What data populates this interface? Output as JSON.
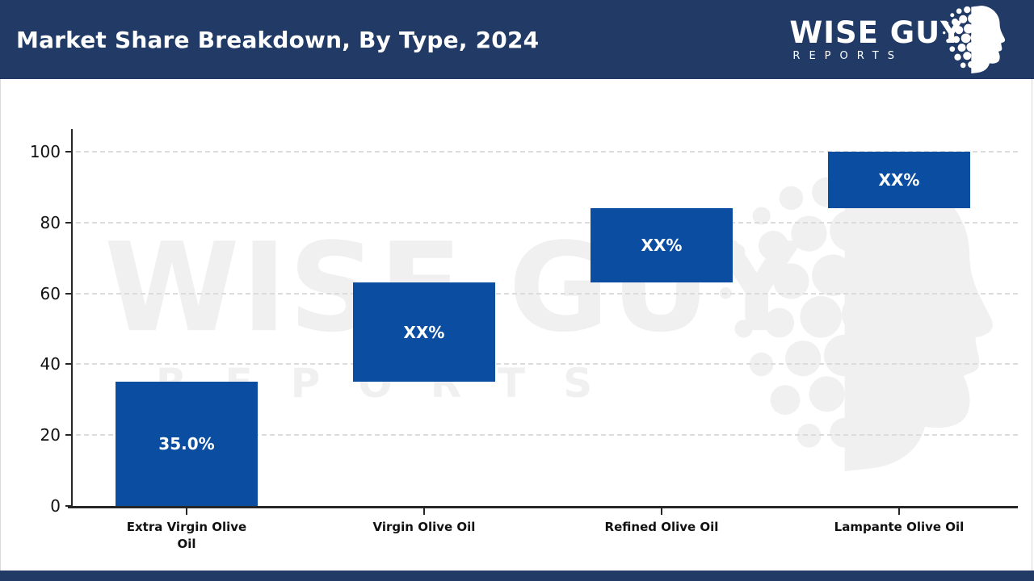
{
  "header": {
    "title": "Market Share Breakdown, By Type, 2024",
    "logo": {
      "line1": "WISE GUY",
      "line2": "REPORTS"
    }
  },
  "watermark": {
    "line1": "WISE GUY",
    "line2": "REPORTS"
  },
  "colors": {
    "header_bg": "#213a66",
    "bar": "#0b4da1",
    "gridline": "#dcdcdc",
    "axis": "#262626",
    "bar_label_text": "#ffffff",
    "watermark": "#f0f0f0"
  },
  "chart_data": {
    "type": "bar",
    "subtype": "waterfall",
    "title": "Market Share Breakdown, By Type, 2024",
    "categories": [
      "Extra Virgin Olive Oil",
      "Virgin Olive Oil",
      "Refined Olive Oil",
      "Lampante Olive Oil"
    ],
    "tick_label_lines": [
      [
        "Extra Virgin Olive",
        "Oil"
      ],
      [
        "Virgin Olive Oil"
      ],
      [
        "Refined Olive Oil"
      ],
      [
        "Lampante Olive Oil"
      ]
    ],
    "segments": [
      {
        "category": "Extra Virgin Olive Oil",
        "start": 0,
        "end": 35,
        "label": "35.0%"
      },
      {
        "category": "Virgin Olive Oil",
        "start": 35,
        "end": 63,
        "label": "XX%"
      },
      {
        "category": "Refined Olive Oil",
        "start": 63,
        "end": 84,
        "label": "XX%"
      },
      {
        "category": "Lampante Olive Oil",
        "start": 84,
        "end": 100,
        "label": "XX%"
      }
    ],
    "values": [
      35,
      28,
      21,
      16
    ],
    "yticks": [
      0,
      20,
      40,
      60,
      80,
      100
    ],
    "ylim": [
      0,
      106
    ],
    "xlabel": "",
    "ylabel": "",
    "grid": "horizontal-dashed",
    "legend": "none"
  }
}
